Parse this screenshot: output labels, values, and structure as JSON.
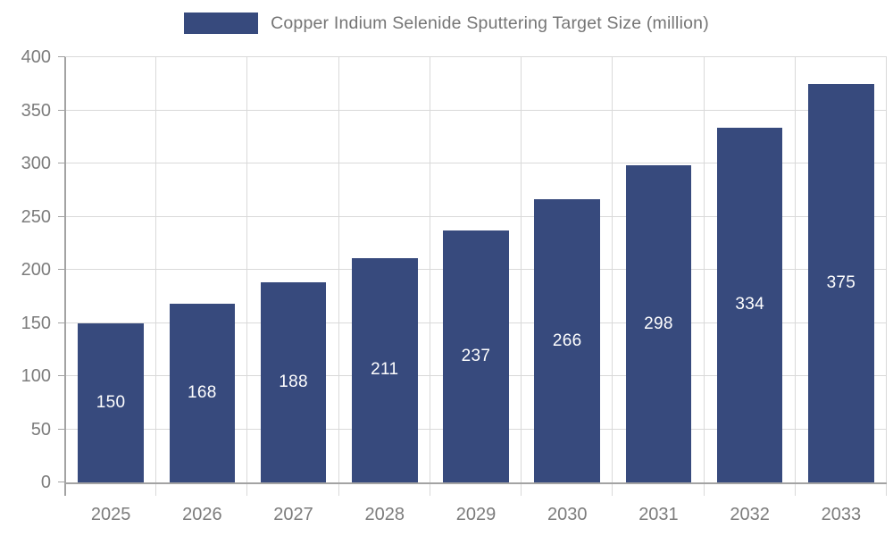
{
  "chart": {
    "legend_label": "Copper Indium Selenide Sputtering Target Size (million)",
    "colors": {
      "bar": "#374a7d",
      "grid": "#d9d9d9",
      "axis": "#a3a3a3",
      "tick_text": "#7c7c7c",
      "legend_text": "#757575",
      "value_text": "#ffffff",
      "background": "#ffffff"
    }
  },
  "chart_data": {
    "type": "bar",
    "title": "Copper Indium Selenide Sputtering Target Size (million)",
    "categories": [
      "2025",
      "2026",
      "2027",
      "2028",
      "2029",
      "2030",
      "2031",
      "2032",
      "2033"
    ],
    "values": [
      150,
      168,
      188,
      211,
      237,
      266,
      298,
      334,
      375
    ],
    "xlabel": "",
    "ylabel": "",
    "ylim": [
      0,
      400
    ],
    "yticks": [
      0,
      50,
      100,
      150,
      200,
      250,
      300,
      350,
      400
    ],
    "grid": true,
    "legend_position": "top-center",
    "bar_value_labels": "inside-center"
  }
}
